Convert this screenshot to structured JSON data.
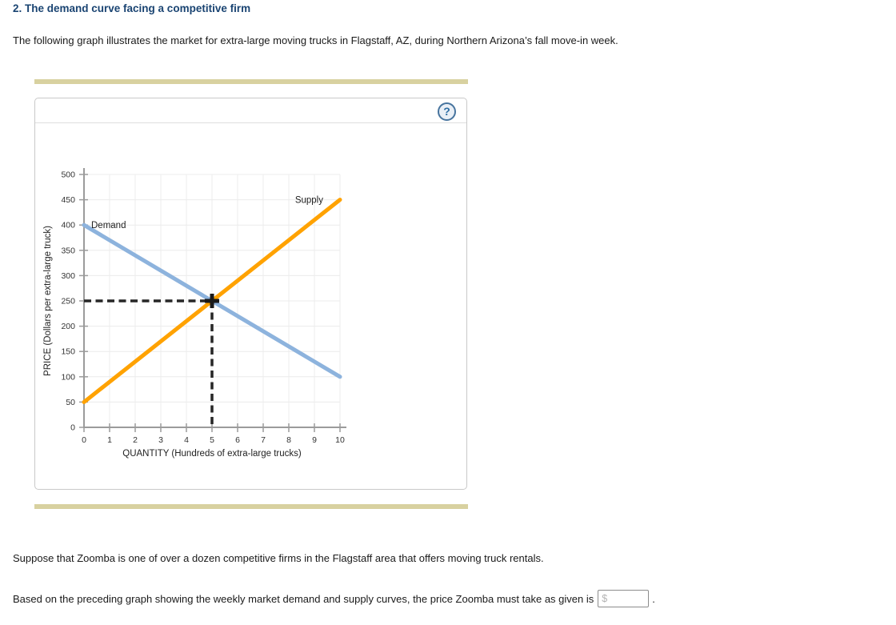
{
  "page": {
    "title": "2. The demand curve facing a competitive firm",
    "intro": "The following graph illustrates the market for extra-large moving trucks in Flagstaff, AZ, during Northern Arizona’s fall move-in week."
  },
  "panel": {
    "help_label": "?"
  },
  "chart_data": {
    "type": "line",
    "title": "",
    "xlabel": "QUANTITY (Hundreds of extra-large trucks)",
    "ylabel": "PRICE (Dollars per extra-large truck)",
    "xlim": [
      0,
      10
    ],
    "ylim": [
      0,
      500
    ],
    "xticks": [
      0,
      1,
      2,
      3,
      4,
      5,
      6,
      7,
      8,
      9,
      10
    ],
    "yticks": [
      0,
      50,
      100,
      150,
      200,
      250,
      300,
      350,
      400,
      450,
      500
    ],
    "grid": true,
    "legend_position": "inline-labels",
    "series": [
      {
        "name": "Demand",
        "color": "#8db3dd",
        "points": [
          [
            0,
            400
          ],
          [
            10,
            100
          ]
        ],
        "label_anchor": "start"
      },
      {
        "name": "Supply",
        "color": "#ffa200",
        "points": [
          [
            0,
            50
          ],
          [
            10,
            450
          ]
        ],
        "label_anchor": "end"
      }
    ],
    "equilibrium": {
      "quantity": 5,
      "price": 250
    }
  },
  "questions": {
    "scenario": "Suppose that Zoomba is one of over a dozen competitive firms in the Flagstaff area that offers moving truck rentals.",
    "prompt_before_input": "Based on the preceding graph showing the weekly market demand and supply curves, the price Zoomba must take as given is",
    "input_prefix": "$",
    "input_value": "",
    "prompt_after_input": "."
  },
  "colors": {
    "title": "#1a4472",
    "divider": "#d8d1a0",
    "demand": "#8db3dd",
    "supply": "#ffa200",
    "equilibrium_dash": "#262626",
    "axis": "#9b9b9b",
    "grid": "#ececec"
  }
}
